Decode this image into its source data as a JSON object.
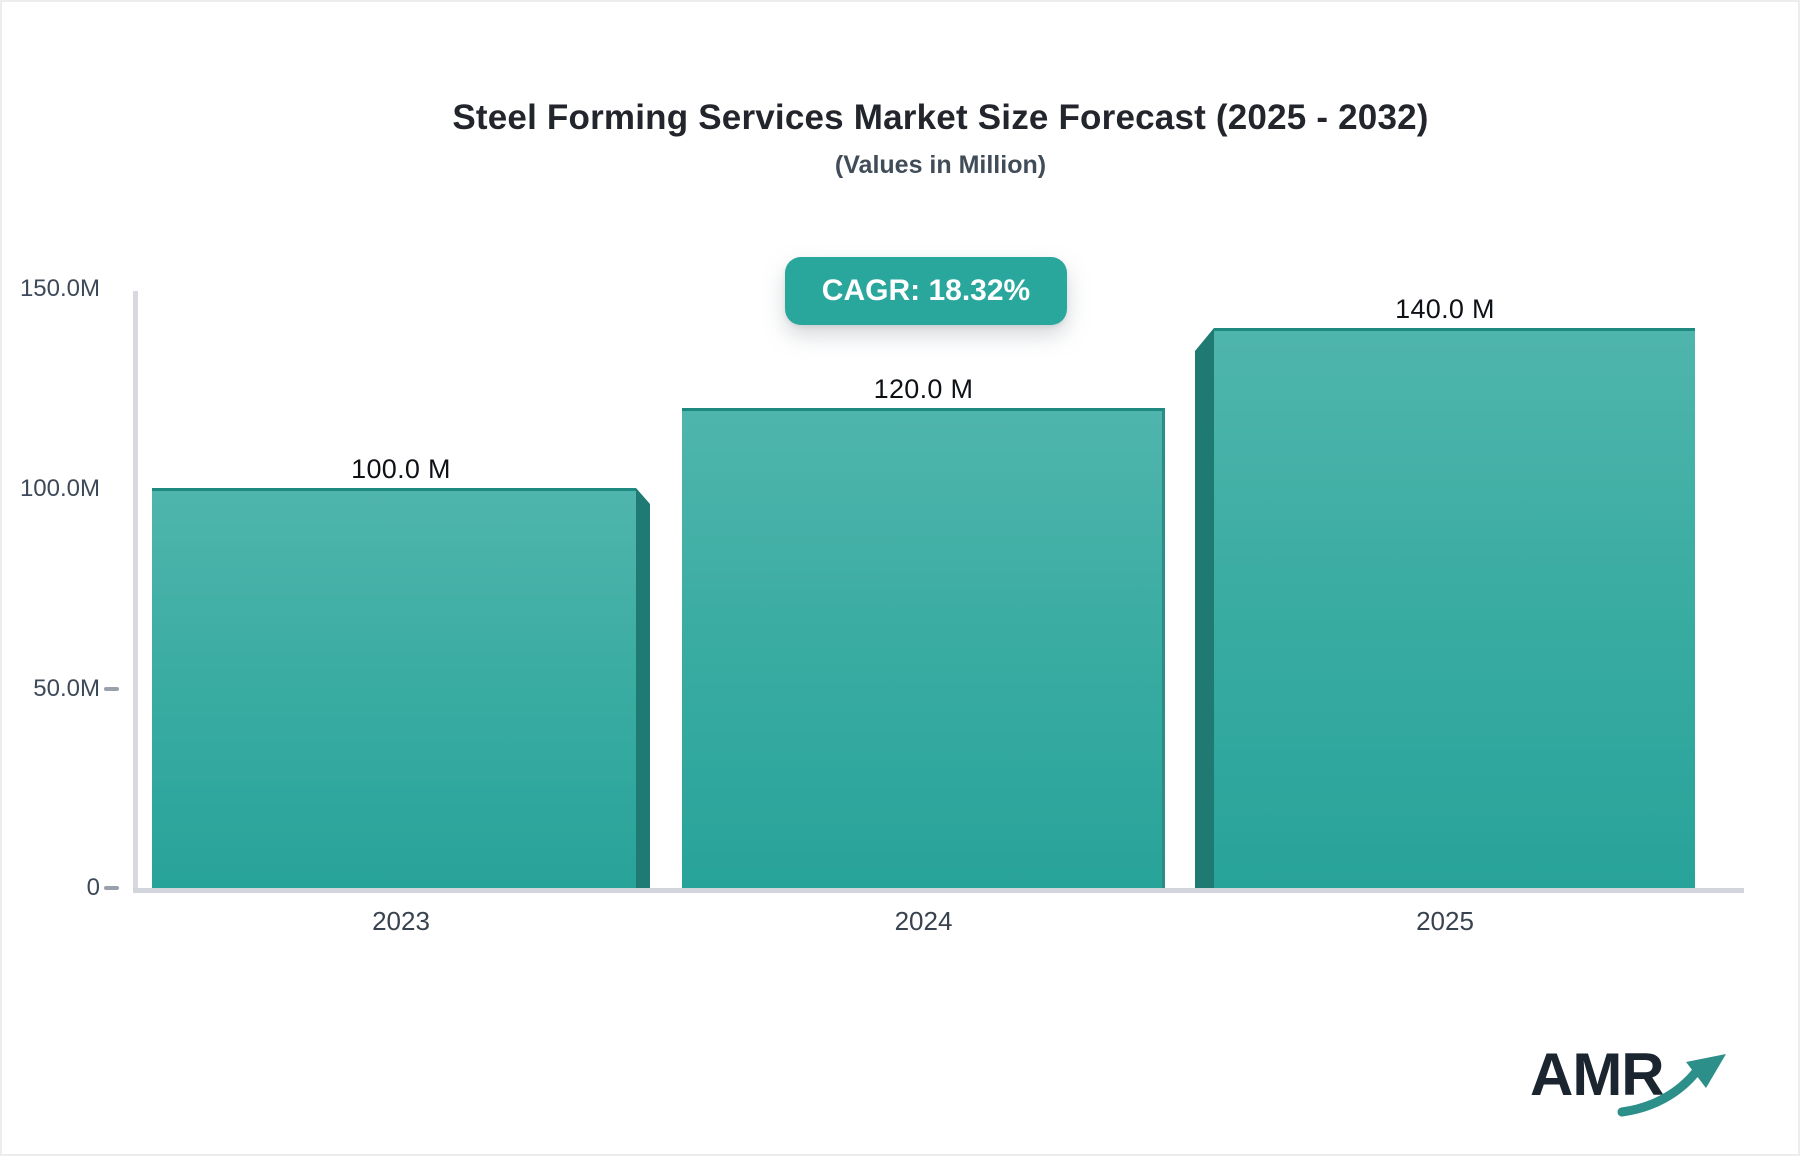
{
  "title": "Steel Forming Services Market Size Forecast (2025 - 2032)",
  "subtitle": "(Values in Million)",
  "badge": {
    "label": "CAGR: 18.32%"
  },
  "chart_data": {
    "type": "bar",
    "title": "Steel Forming Services Market Size Forecast (2025 - 2032)",
    "subtitle": "(Values in Million)",
    "unit": "Million",
    "categories": [
      "2023",
      "2024",
      "2025"
    ],
    "values": [
      100,
      120,
      140
    ],
    "value_labels": [
      "100.0 M",
      "120.0 M",
      "140.0 M"
    ],
    "cagr_percent": 18.32,
    "y_ticks": [
      "150.0M",
      "100.0M",
      "50.0M",
      "0"
    ],
    "ylim": [
      0,
      150
    ],
    "grid": false,
    "legend": false,
    "bar_style": "3d-extruded",
    "colors": {
      "bar_top": "#4fb5ac",
      "bar_bottom": "#28a39a",
      "bar_side": "#1e7a73",
      "bar_top_edge": "#1d897f",
      "badge_background": "#2aa79c",
      "axis_line": "#d8d9df"
    }
  },
  "logo": {
    "text": "AMR"
  }
}
